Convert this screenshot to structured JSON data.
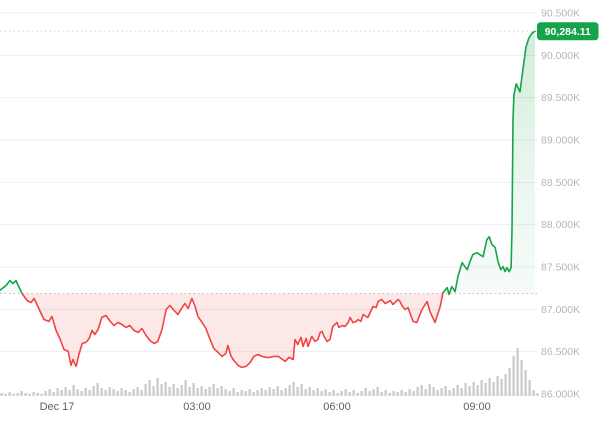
{
  "chart_data": {
    "type": "area",
    "title": "",
    "instrument_hint": "price-with-volume-baseline-chart",
    "current_price": 90284.11,
    "current_price_label": "90,284.11",
    "baseline_value": 87187,
    "x_axis": {
      "unit": "hours_from_Dec17_midnight",
      "range": [
        -1.23,
        10.24
      ],
      "ticks": [
        {
          "t": 0,
          "label": "Dec 17"
        },
        {
          "t": 3,
          "label": "03:00"
        },
        {
          "t": 6,
          "label": "06:00"
        },
        {
          "t": 9,
          "label": "09:00"
        }
      ]
    },
    "y_axis": {
      "range": [
        86000,
        90500
      ],
      "ticks": [
        {
          "v": 90500,
          "label": "90.500K"
        },
        {
          "v": 90000,
          "label": "90.000K"
        },
        {
          "v": 89500,
          "label": "89.500K"
        },
        {
          "v": 89000,
          "label": "89.000K"
        },
        {
          "v": 88500,
          "label": "88.500K"
        },
        {
          "v": 88000,
          "label": "88.000K"
        },
        {
          "v": 87500,
          "label": "87.500K"
        },
        {
          "v": 87000,
          "label": "87.000K"
        },
        {
          "v": 86500,
          "label": "86.500K"
        },
        {
          "v": 86000,
          "label": "86.000K"
        }
      ]
    },
    "series": [
      {
        "name": "price",
        "points": [
          [
            -1.23,
            87222
          ],
          [
            -1.09,
            87281
          ],
          [
            -1.01,
            87340
          ],
          [
            -0.94,
            87305
          ],
          [
            -0.88,
            87340
          ],
          [
            -0.75,
            87187
          ],
          [
            -0.64,
            87104
          ],
          [
            -0.56,
            87080
          ],
          [
            -0.49,
            87128
          ],
          [
            -0.41,
            87033
          ],
          [
            -0.28,
            86880
          ],
          [
            -0.17,
            86857
          ],
          [
            -0.11,
            86916
          ],
          [
            -0.02,
            86750
          ],
          [
            0.06,
            86656
          ],
          [
            0.15,
            86526
          ],
          [
            0.24,
            86503
          ],
          [
            0.3,
            86338
          ],
          [
            0.34,
            86408
          ],
          [
            0.41,
            86326
          ],
          [
            0.47,
            86467
          ],
          [
            0.54,
            86597
          ],
          [
            0.62,
            86609
          ],
          [
            0.69,
            86656
          ],
          [
            0.75,
            86750
          ],
          [
            0.81,
            86703
          ],
          [
            0.88,
            86762
          ],
          [
            0.96,
            86903
          ],
          [
            1.05,
            86927
          ],
          [
            1.14,
            86857
          ],
          [
            1.22,
            86809
          ],
          [
            1.31,
            86845
          ],
          [
            1.39,
            86821
          ],
          [
            1.48,
            86786
          ],
          [
            1.56,
            86809
          ],
          [
            1.65,
            86750
          ],
          [
            1.74,
            86727
          ],
          [
            1.82,
            86774
          ],
          [
            1.91,
            86691
          ],
          [
            1.99,
            86632
          ],
          [
            2.08,
            86597
          ],
          [
            2.16,
            86621
          ],
          [
            2.25,
            86762
          ],
          [
            2.34,
            86998
          ],
          [
            2.42,
            87045
          ],
          [
            2.51,
            86986
          ],
          [
            2.59,
            86939
          ],
          [
            2.68,
            87021
          ],
          [
            2.74,
            87069
          ],
          [
            2.81,
            87010
          ],
          [
            2.89,
            87128
          ],
          [
            2.96,
            87033
          ],
          [
            3.02,
            86916
          ],
          [
            3.11,
            86845
          ],
          [
            3.19,
            86774
          ],
          [
            3.28,
            86644
          ],
          [
            3.36,
            86538
          ],
          [
            3.45,
            86491
          ],
          [
            3.54,
            86444
          ],
          [
            3.62,
            86479
          ],
          [
            3.66,
            86573
          ],
          [
            3.73,
            86444
          ],
          [
            3.79,
            86396
          ],
          [
            3.88,
            86338
          ],
          [
            3.96,
            86314
          ],
          [
            4.05,
            86326
          ],
          [
            4.14,
            86373
          ],
          [
            4.22,
            86444
          ],
          [
            4.31,
            86467
          ],
          [
            4.39,
            86444
          ],
          [
            4.48,
            86432
          ],
          [
            4.56,
            86432
          ],
          [
            4.65,
            86444
          ],
          [
            4.74,
            86444
          ],
          [
            4.8,
            86420
          ],
          [
            4.89,
            86385
          ],
          [
            4.97,
            86432
          ],
          [
            5.06,
            86408
          ],
          [
            5.1,
            86644
          ],
          [
            5.16,
            86585
          ],
          [
            5.23,
            86668
          ],
          [
            5.27,
            86562
          ],
          [
            5.34,
            86656
          ],
          [
            5.38,
            86562
          ],
          [
            5.46,
            86680
          ],
          [
            5.53,
            86621
          ],
          [
            5.59,
            86644
          ],
          [
            5.64,
            86727
          ],
          [
            5.68,
            86739
          ],
          [
            5.72,
            86680
          ],
          [
            5.79,
            86621
          ],
          [
            5.85,
            86644
          ],
          [
            5.91,
            86797
          ],
          [
            6.0,
            86845
          ],
          [
            6.04,
            86786
          ],
          [
            6.11,
            86809
          ],
          [
            6.17,
            86797
          ],
          [
            6.24,
            86845
          ],
          [
            6.28,
            86903
          ],
          [
            6.34,
            86845
          ],
          [
            6.41,
            86857
          ],
          [
            6.45,
            86880
          ],
          [
            6.51,
            86857
          ],
          [
            6.56,
            86939
          ],
          [
            6.62,
            86916
          ],
          [
            6.66,
            86903
          ],
          [
            6.71,
            86963
          ],
          [
            6.77,
            87033
          ],
          [
            6.84,
            87021
          ],
          [
            6.88,
            87092
          ],
          [
            6.96,
            87116
          ],
          [
            7.03,
            87069
          ],
          [
            7.07,
            87080
          ],
          [
            7.14,
            87104
          ],
          [
            7.2,
            87057
          ],
          [
            7.24,
            87080
          ],
          [
            7.31,
            87116
          ],
          [
            7.35,
            87092
          ],
          [
            7.39,
            87045
          ],
          [
            7.46,
            86998
          ],
          [
            7.52,
            87021
          ],
          [
            7.63,
            86857
          ],
          [
            7.71,
            86845
          ],
          [
            7.82,
            86998
          ],
          [
            7.93,
            87092
          ],
          [
            7.99,
            86975
          ],
          [
            8.1,
            86845
          ],
          [
            8.21,
            87033
          ],
          [
            8.27,
            87198
          ],
          [
            8.36,
            87257
          ],
          [
            8.4,
            87175
          ],
          [
            8.46,
            87269
          ],
          [
            8.53,
            87210
          ],
          [
            8.59,
            87387
          ],
          [
            8.68,
            87552
          ],
          [
            8.74,
            87505
          ],
          [
            8.79,
            87469
          ],
          [
            8.85,
            87564
          ],
          [
            8.91,
            87646
          ],
          [
            9.0,
            87670
          ],
          [
            9.06,
            87646
          ],
          [
            9.13,
            87622
          ],
          [
            9.21,
            87823
          ],
          [
            9.26,
            87858
          ],
          [
            9.32,
            87764
          ],
          [
            9.39,
            87729
          ],
          [
            9.45,
            87564
          ],
          [
            9.51,
            87469
          ],
          [
            9.56,
            87505
          ],
          [
            9.6,
            87446
          ],
          [
            9.64,
            87493
          ],
          [
            9.69,
            87446
          ],
          [
            9.73,
            87493
          ],
          [
            9.75,
            87941
          ],
          [
            9.77,
            89238
          ],
          [
            9.79,
            89533
          ],
          [
            9.84,
            89663
          ],
          [
            9.88,
            89615
          ],
          [
            9.92,
            89568
          ],
          [
            9.96,
            89733
          ],
          [
            10.01,
            89945
          ],
          [
            10.05,
            90098
          ],
          [
            10.11,
            90204
          ],
          [
            10.18,
            90263
          ],
          [
            10.24,
            90284.11
          ]
        ]
      }
    ],
    "volume_relative": [
      3,
      2,
      4,
      2,
      3,
      5,
      3,
      2,
      4,
      3,
      2,
      5,
      7,
      4,
      8,
      6,
      9,
      6,
      11,
      7,
      5,
      8,
      6,
      10,
      13,
      8,
      6,
      9,
      7,
      5,
      8,
      6,
      4,
      7,
      9,
      6,
      12,
      16,
      10,
      18,
      12,
      14,
      9,
      12,
      8,
      11,
      16,
      9,
      13,
      8,
      10,
      7,
      9,
      12,
      8,
      10,
      7,
      5,
      8,
      4,
      6,
      5,
      7,
      4,
      6,
      8,
      6,
      9,
      7,
      10,
      6,
      8,
      11,
      14,
      9,
      12,
      7,
      9,
      6,
      8,
      5,
      7,
      4,
      6,
      3,
      5,
      7,
      4,
      6,
      3,
      5,
      8,
      5,
      7,
      9,
      4,
      6,
      3,
      5,
      4,
      6,
      4,
      7,
      5,
      9,
      11,
      7,
      12,
      9,
      6,
      8,
      10,
      6,
      8,
      11,
      8,
      13,
      10,
      14,
      11,
      16,
      13,
      18,
      14,
      20,
      17,
      22,
      28,
      40,
      48,
      36,
      26,
      16,
      6,
      3
    ],
    "legend": [],
    "grid": "horizontal-only",
    "colors": {
      "up": "#16a34a",
      "down": "#ef4444",
      "up_fill": "rgba(22,163,74,0.20)",
      "down_fill": "rgba(239,68,68,0.12)",
      "grid_line": "#eeeef1",
      "baseline_dotted": "#bfbfc6",
      "price_dotted": "#d6d6db",
      "y_label_text": "#b6b6bc",
      "x_label_text": "#5f6066",
      "volume_bar": "#c9c9ce",
      "badge_bg": "#16a34a",
      "badge_text": "#ffffff"
    }
  }
}
